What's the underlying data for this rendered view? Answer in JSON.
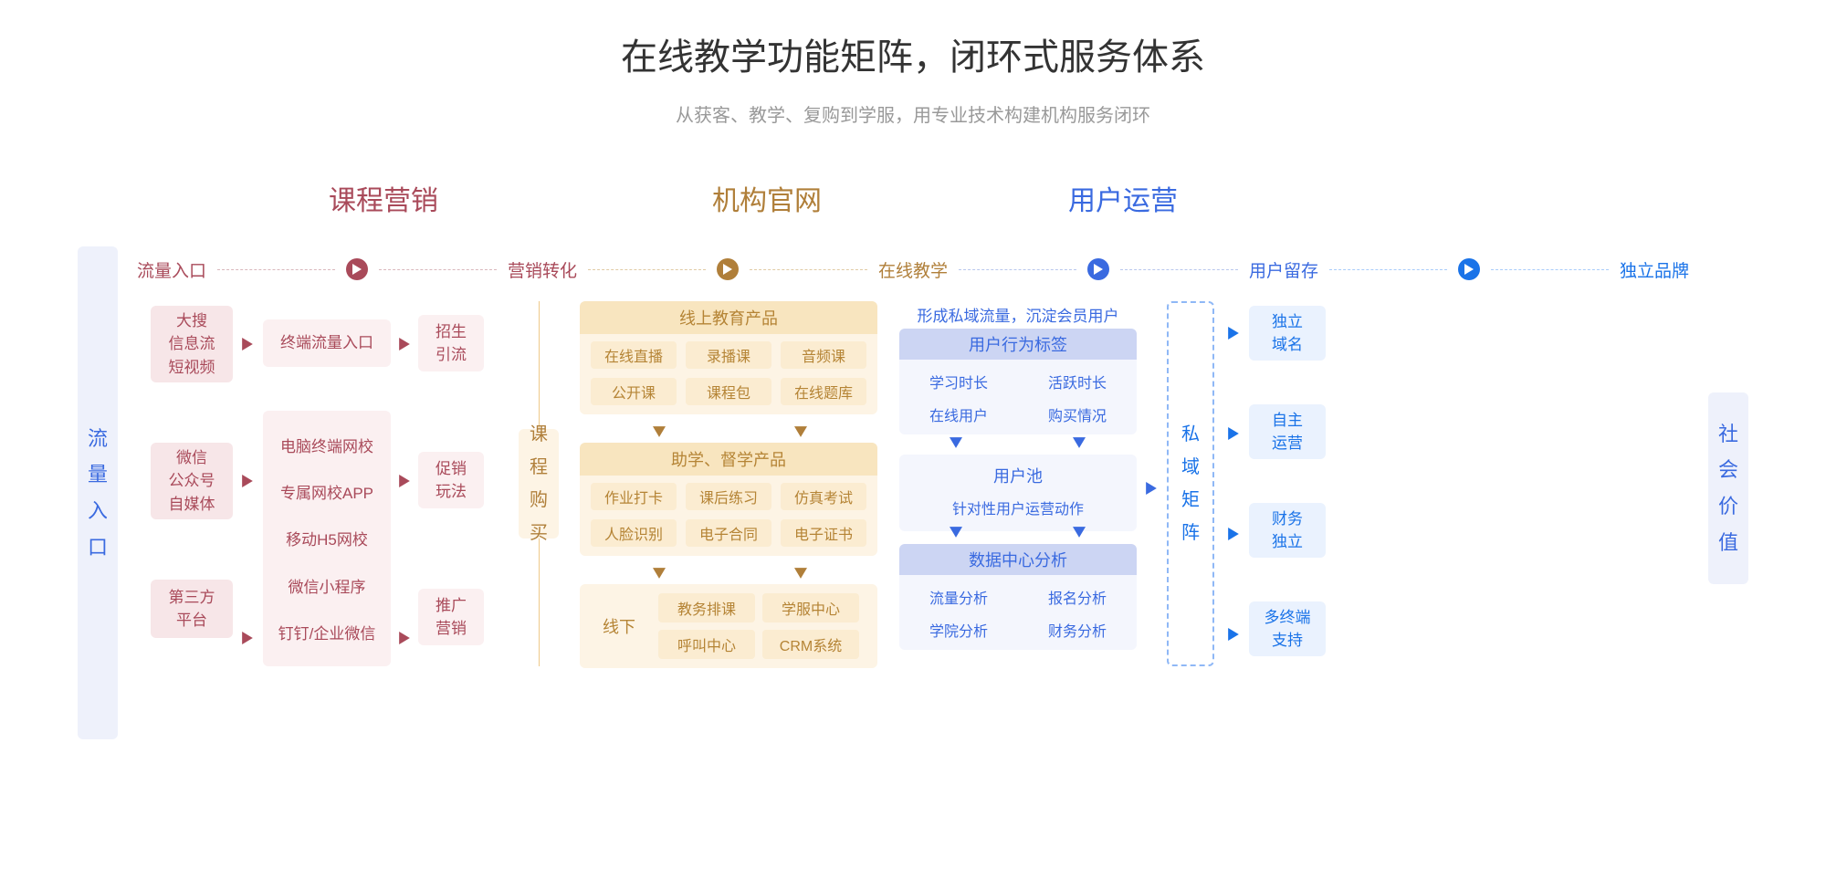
{
  "title": {
    "text": "在线教学功能矩阵，闭环式服务体系",
    "fontsize": 40,
    "color": "#333333"
  },
  "subtitle": {
    "text": "从获客、教学、复购到学服，用专业技术构建机构服务闭环",
    "fontsize": 20,
    "color": "#999999"
  },
  "colors": {
    "pink": "#a94a5a",
    "pink_bg": "#fbf0f1",
    "pink_box": "#f7e6e8",
    "brown": "#b07f3a",
    "orange_bg": "#fdf4e5",
    "orange_dark": "#efc989",
    "orange_mid": "#f8e5bf",
    "orange_chip": "#fbecd1",
    "orange_text": "#b58435",
    "blue": "#3a6ae0",
    "blue_bg": "#eef1fb",
    "blue_light": "#f4f6fd",
    "blue_mid": "#ccd5f3",
    "blue_chip": "#e8edfa",
    "blue2": "#1a73e8",
    "blue2_bg": "#eaf2fe"
  },
  "sections": [
    {
      "label": "课程营销",
      "color": "#a94a5a"
    },
    {
      "label": "机构官网",
      "color": "#b07f3a"
    },
    {
      "label": "用户运营",
      "color": "#3a6ae0"
    }
  ],
  "stages": [
    {
      "label": "流量入口",
      "color": "#a94a5a"
    },
    {
      "label": "营销转化",
      "color": "#a94a5a"
    },
    {
      "label": "在线教学",
      "color": "#b07f3a"
    },
    {
      "label": "用户留存",
      "color": "#3a6ae0"
    },
    {
      "label": "独立品牌",
      "color": "#1a73e8"
    }
  ],
  "left_bar": {
    "text": "流量入口",
    "bg": "#eef1fb",
    "color": "#3a6ae0"
  },
  "right_bar": {
    "text": "社会价值",
    "bg": "#eef1fb",
    "color": "#3a6ae0"
  },
  "mid_bar": {
    "text": "课程购买",
    "bg": "#fdf4e5",
    "color": "#b07f3a"
  },
  "priv_bar": {
    "text": "私域矩阵",
    "bg": "#eaf2fe",
    "color": "#1a73e8"
  },
  "pink_col1": [
    {
      "lines": [
        "大搜",
        "信息流",
        "短视频"
      ]
    },
    {
      "lines": [
        "微信",
        "公众号",
        "自媒体"
      ]
    },
    {
      "lines": [
        "第三方",
        "平台"
      ]
    }
  ],
  "pink_col2": {
    "top": "终端流量入口",
    "mid": [
      "电脑终端网校",
      "专属网校APP",
      "移动H5网校",
      "微信小程序",
      "钉钉/企业微信"
    ]
  },
  "pink_col3": [
    {
      "lines": [
        "招生",
        "引流"
      ]
    },
    {
      "lines": [
        "促销",
        "玩法"
      ]
    },
    {
      "lines": [
        "推广",
        "营销"
      ]
    }
  ],
  "orange_groups": [
    {
      "title": "线上教育产品",
      "chips": [
        "在线直播",
        "录播课",
        "音频课",
        "公开课",
        "课程包",
        "在线题库"
      ]
    },
    {
      "title": "助学、督学产品",
      "chips": [
        "作业打卡",
        "课后练习",
        "仿真考试",
        "人脸识别",
        "电子合同",
        "电子证书"
      ]
    }
  ],
  "orange_offline": {
    "label": "线下",
    "chips": [
      "教务排课",
      "学服中心",
      "呼叫中心",
      "CRM系统"
    ]
  },
  "blue_top_note": "形成私域流量，沉淀会员用户",
  "blue_groups": [
    {
      "title": "用户行为标签",
      "items": [
        "学习时长",
        "活跃时长",
        "在线用户",
        "购买情况"
      ]
    },
    {
      "title": "用户池",
      "subtitle": "针对性用户运营动作"
    },
    {
      "title": "数据中心分析",
      "items": [
        "流量分析",
        "报名分析",
        "学院分析",
        "财务分析"
      ]
    }
  ],
  "blue2_items": [
    {
      "lines": [
        "独立",
        "域名"
      ]
    },
    {
      "lines": [
        "自主",
        "运营"
      ]
    },
    {
      "lines": [
        "财务",
        "独立"
      ]
    },
    {
      "lines": [
        "多终端",
        "支持"
      ]
    }
  ]
}
